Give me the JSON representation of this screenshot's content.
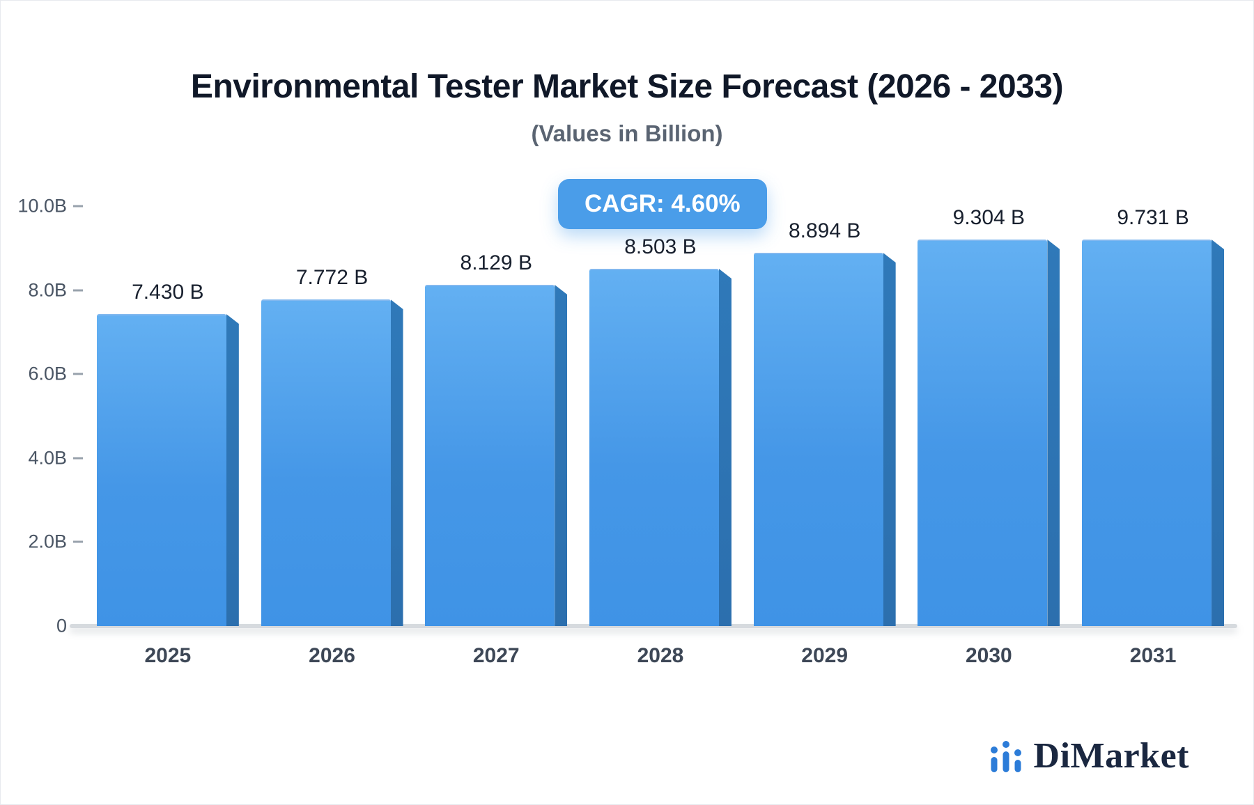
{
  "header": {
    "title": "Environmental Tester Market Size Forecast (2026 - 2033)",
    "subtitle": "(Values in Billion)"
  },
  "badge": {
    "label": "CAGR: 4.60%",
    "color": "#4a9de9"
  },
  "chart_data": {
    "type": "bar",
    "title": "Environmental Tester Market Size Forecast (2026 - 2033)",
    "subtitle": "(Values in Billion)",
    "categories": [
      "2025",
      "2026",
      "2027",
      "2028",
      "2029",
      "2030",
      "2031"
    ],
    "values": [
      7.43,
      7.772,
      8.129,
      8.503,
      8.894,
      9.304,
      9.731
    ],
    "value_labels": [
      "7.430 B",
      "7.772 B",
      "8.129 B",
      "8.503 B",
      "8.894 B",
      "9.304 B",
      "9.731 B"
    ],
    "ylim": [
      0,
      10
    ],
    "yticks": [
      {
        "label": "0",
        "value": 0
      },
      {
        "label": "2.0B",
        "value": 2
      },
      {
        "label": "4.0B",
        "value": 4
      },
      {
        "label": "6.0B",
        "value": 6
      },
      {
        "label": "8.0B",
        "value": 8
      },
      {
        "label": "10.0B",
        "value": 10
      }
    ],
    "xlabel": "",
    "ylabel": "",
    "grid": false,
    "legend": false,
    "bar_color_top": "#63b0f2",
    "bar_color_bottom": "#3f93e6",
    "bar_side_color": "#2c6fae",
    "annotation": "CAGR: 4.60%"
  },
  "footer": {
    "brand": "DiMarket",
    "logo_icon": "bar-chart-logo-icon",
    "logo_color": "#2c7cd8",
    "brand_text_color": "#1a2740"
  }
}
